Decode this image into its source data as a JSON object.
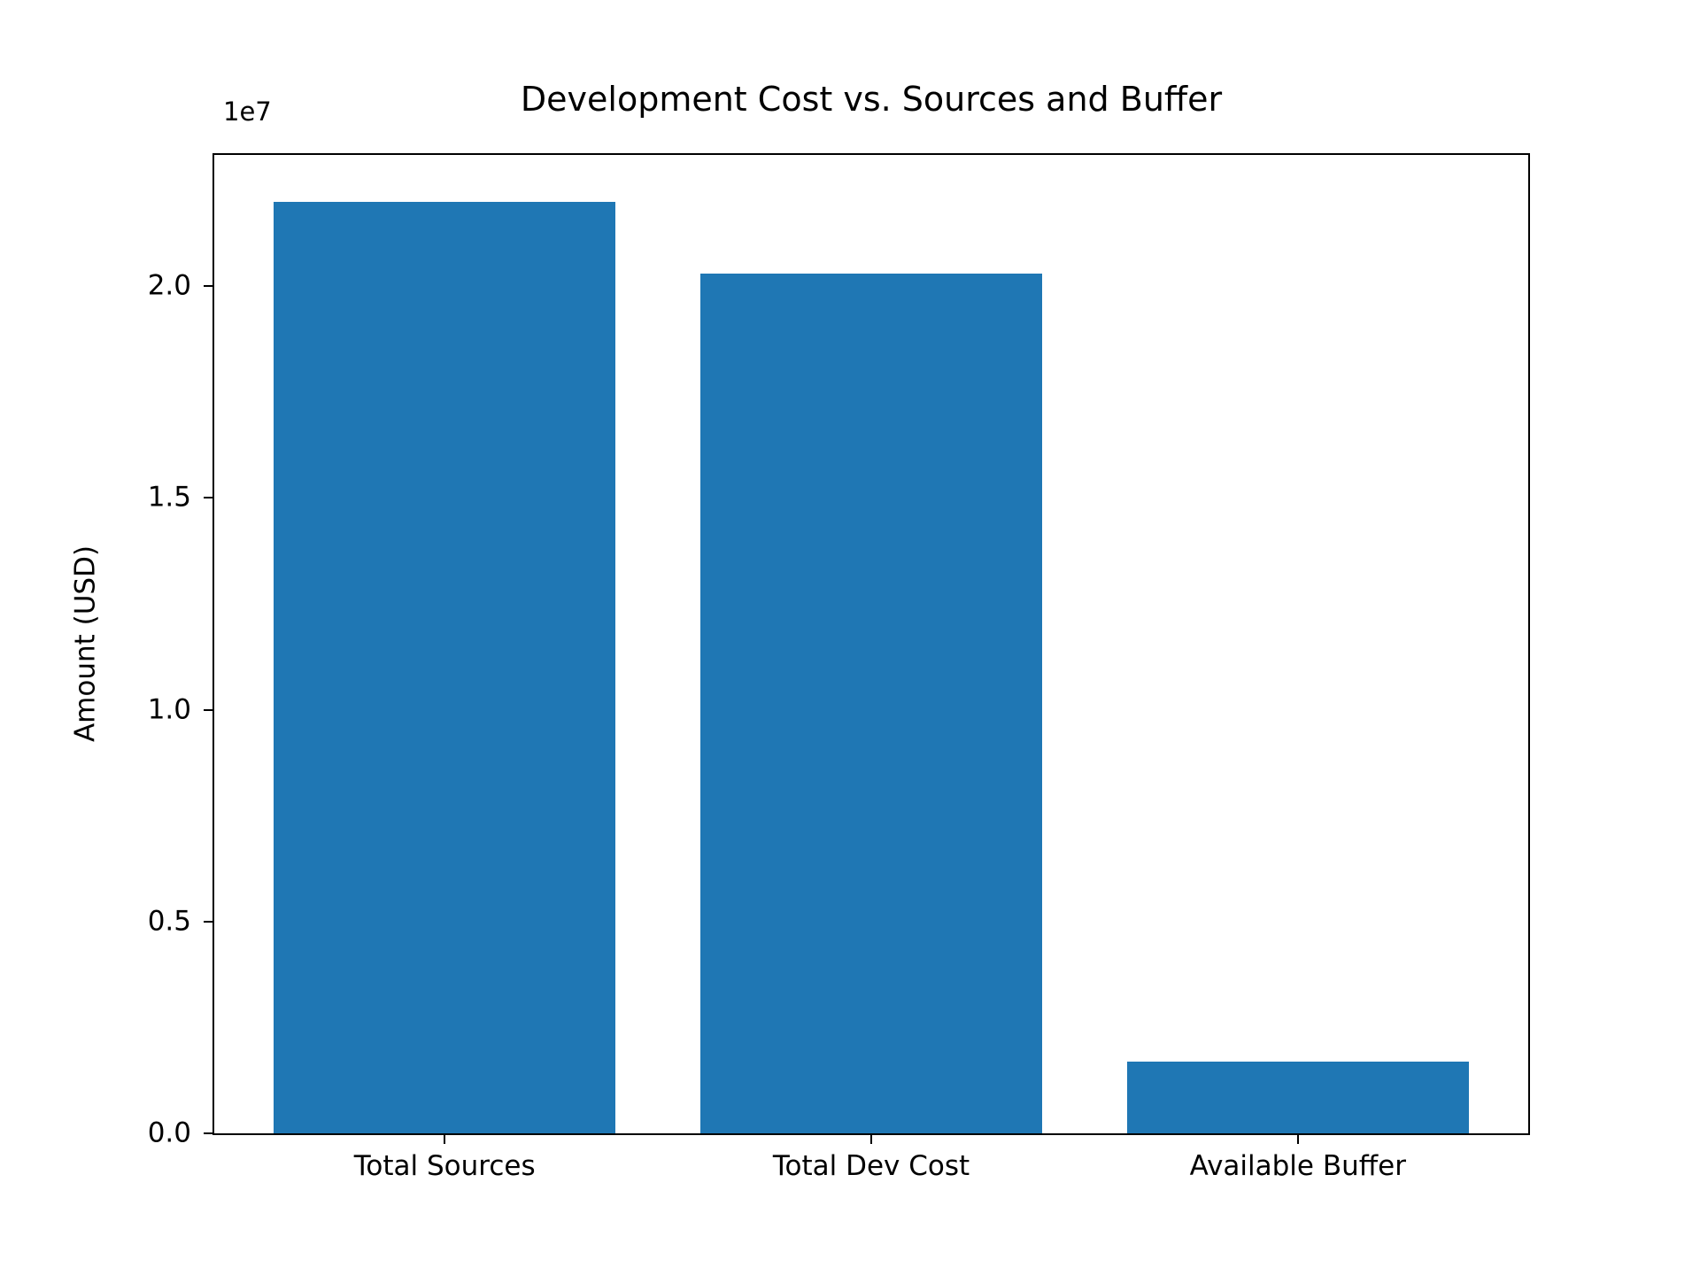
{
  "chart_data": {
    "type": "bar",
    "title": "Development Cost vs. Sources and Buffer",
    "categories": [
      "Total Sources",
      "Total Dev Cost",
      "Available Buffer"
    ],
    "values": [
      22000000,
      20300000,
      1700000
    ],
    "xlabel": "",
    "ylabel": "Amount (USD)",
    "y_offset_text": "1e7",
    "ylim": [
      0,
      23100000
    ],
    "yticks": [
      0,
      5000000,
      10000000,
      15000000,
      20000000
    ],
    "ytick_labels": [
      "0.0",
      "0.5",
      "1.0",
      "1.5",
      "2.0"
    ],
    "bar_color": "#1f77b4",
    "text_color": "#000000",
    "grid": false,
    "legend": false
  }
}
